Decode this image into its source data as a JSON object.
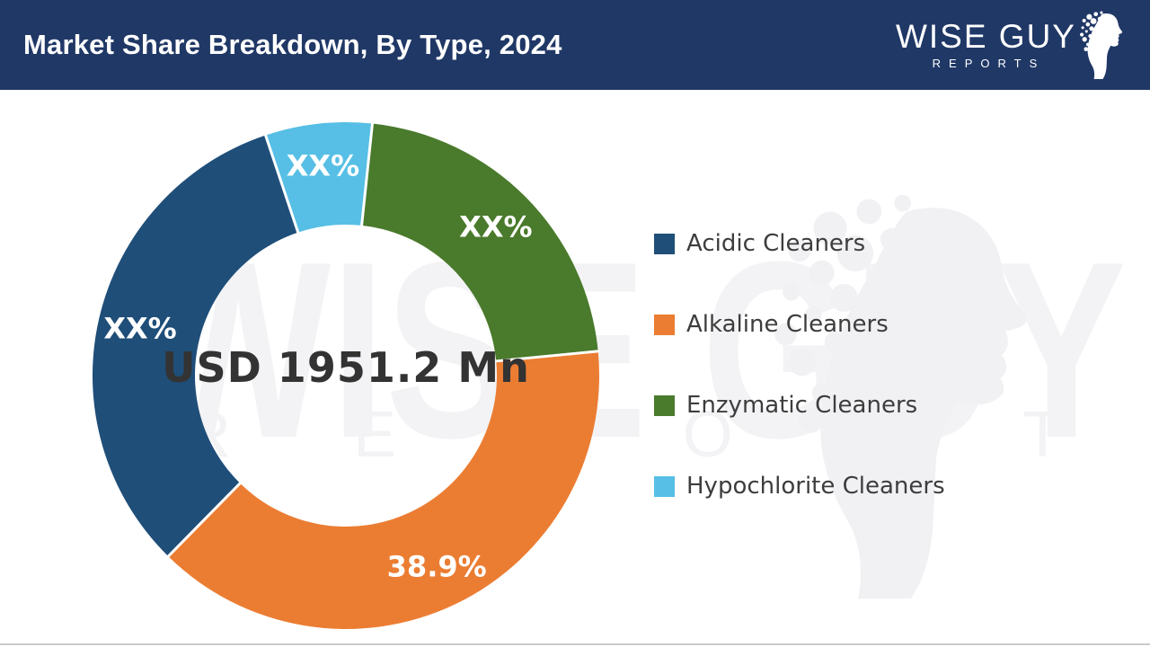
{
  "header": {
    "title": "Market Share Breakdown, By Type, 2024",
    "bg_color": "#203866",
    "logo": {
      "line1": "WISE GUY",
      "line2": "REPORTS"
    }
  },
  "watermark": {
    "line1": "WISE GUY",
    "line2": "R E P O R T S"
  },
  "chart_data": {
    "type": "pie",
    "subtype": "donut",
    "center_label": "USD 1951.2 Mn",
    "start_angle_deg": 6,
    "slices": [
      {
        "name": "Enzymatic Cleaners",
        "share_pct": 21.8,
        "data_label": "XX%",
        "color": "#4A7A2C"
      },
      {
        "name": "Alkaline Cleaners",
        "share_pct": 38.9,
        "data_label": "38.9%",
        "color": "#EB7D33"
      },
      {
        "name": "Acidic Cleaners",
        "share_pct": 32.5,
        "data_label": "XX%",
        "color": "#1F4E79"
      },
      {
        "name": "Hypochlorite Cleaners",
        "share_pct": 6.8,
        "data_label": "XX%",
        "color": "#57BFE5"
      }
    ],
    "legend": [
      {
        "name": "Acidic Cleaners",
        "color": "#1F4E79"
      },
      {
        "name": "Alkaline Cleaners",
        "color": "#EB7D33"
      },
      {
        "name": "Enzymatic Cleaners",
        "color": "#4A7A2C"
      },
      {
        "name": "Hypochlorite Cleaners",
        "color": "#57BFE5"
      }
    ],
    "legend_position": "right",
    "notes": "white separator lines between slices; value labels shown inside ring"
  }
}
